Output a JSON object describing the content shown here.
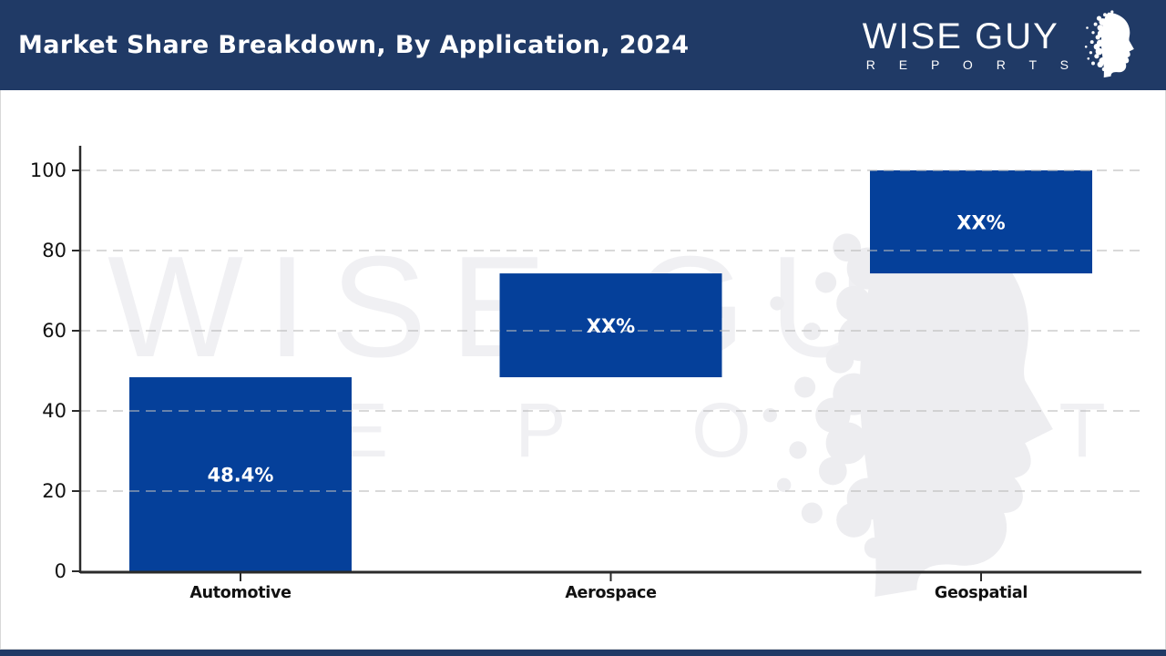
{
  "header": {
    "title": "Market Share Breakdown, By Application, 2024",
    "logo": {
      "brand": "WISE GUY",
      "sub": "R E P O R T S",
      "face_icon": "dotted-head-profile-icon"
    }
  },
  "watermark": {
    "line1": "WISE GUY",
    "line2": "R E P O R T S",
    "face_icon": "dotted-head-profile-icon"
  },
  "chart_data": {
    "type": "bar",
    "subtype": "waterfall",
    "title": "Market Share Breakdown, By Application, 2024",
    "categories": [
      "Automotive",
      "Aerospace",
      "Geospatial"
    ],
    "segments": [
      {
        "category": "Automotive",
        "start": 0,
        "end": 48.4,
        "label": "48.4%"
      },
      {
        "category": "Aerospace",
        "start": 48.4,
        "end": 74.3,
        "label": "XX%"
      },
      {
        "category": "Geospatial",
        "start": 74.3,
        "end": 100,
        "label": "XX%"
      }
    ],
    "xlabel": "",
    "ylabel": "",
    "ylim": [
      0,
      100
    ],
    "yticks": [
      0,
      20,
      40,
      60,
      80,
      100
    ],
    "grid": "horizontal-dashed",
    "legend": "none",
    "bar_color": "#05409a",
    "bar_label_color": "#ffffff"
  },
  "colors": {
    "header_bg": "#203a66",
    "footer_bg": "#203a66",
    "axis": "#2b2b2b",
    "tick_label": "#111111",
    "grid_line": "#bebebe",
    "watermark": "#f0f0f3",
    "page_bg": "#ffffff"
  }
}
